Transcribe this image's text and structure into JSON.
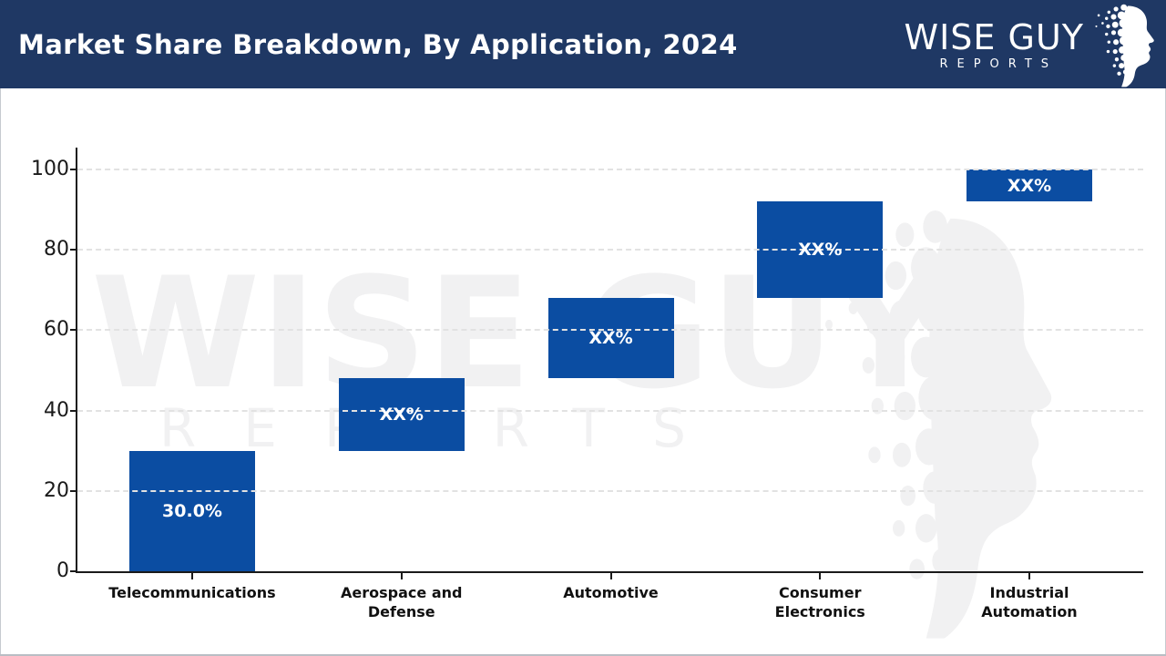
{
  "header": {
    "title": "Market Share Breakdown, By Application, 2024",
    "logo": {
      "brand": "WISE GUY",
      "sub": "REPORTS"
    }
  },
  "watermark": {
    "line1": "WISE GUY",
    "line2": "REPORTS"
  },
  "chart_data": {
    "type": "bar",
    "subtype": "floating-segment-waterfall",
    "title": "Market Share Breakdown, By Application, 2024",
    "xlabel": "",
    "ylabel": "",
    "ylim": [
      0,
      105
    ],
    "yticks": [
      0,
      20,
      40,
      60,
      80,
      100
    ],
    "grid": "horizontal-dashed",
    "legend": "none",
    "bar_color": "#0b4da2",
    "categories": [
      "Telecommunications",
      "Aerospace and Defense",
      "Automotive",
      "Consumer Electronics",
      "Industrial Automation"
    ],
    "category_label_lines": [
      [
        "Telecommunications"
      ],
      [
        "Aerospace and",
        "Defense"
      ],
      [
        "Automotive"
      ],
      [
        "Consumer",
        "Electronics"
      ],
      [
        "Industrial",
        "Automation"
      ]
    ],
    "segments": [
      {
        "category": "Telecommunications",
        "from": 0,
        "to": 30,
        "label": "30.0%"
      },
      {
        "category": "Aerospace and Defense",
        "from": 30,
        "to": 48,
        "label": "XX%"
      },
      {
        "category": "Automotive",
        "from": 48,
        "to": 68,
        "label": "XX%"
      },
      {
        "category": "Consumer Electronics",
        "from": 68,
        "to": 92,
        "label": "XX%"
      },
      {
        "category": "Industrial Automation",
        "from": 92,
        "to": 100,
        "label": "XX%"
      }
    ]
  },
  "colors": {
    "header_bg": "#1f3864",
    "bar": "#0b4da2",
    "grid": "#e2e2e2",
    "axis": "#1a1a1a",
    "watermark": "#f1f1f2"
  }
}
